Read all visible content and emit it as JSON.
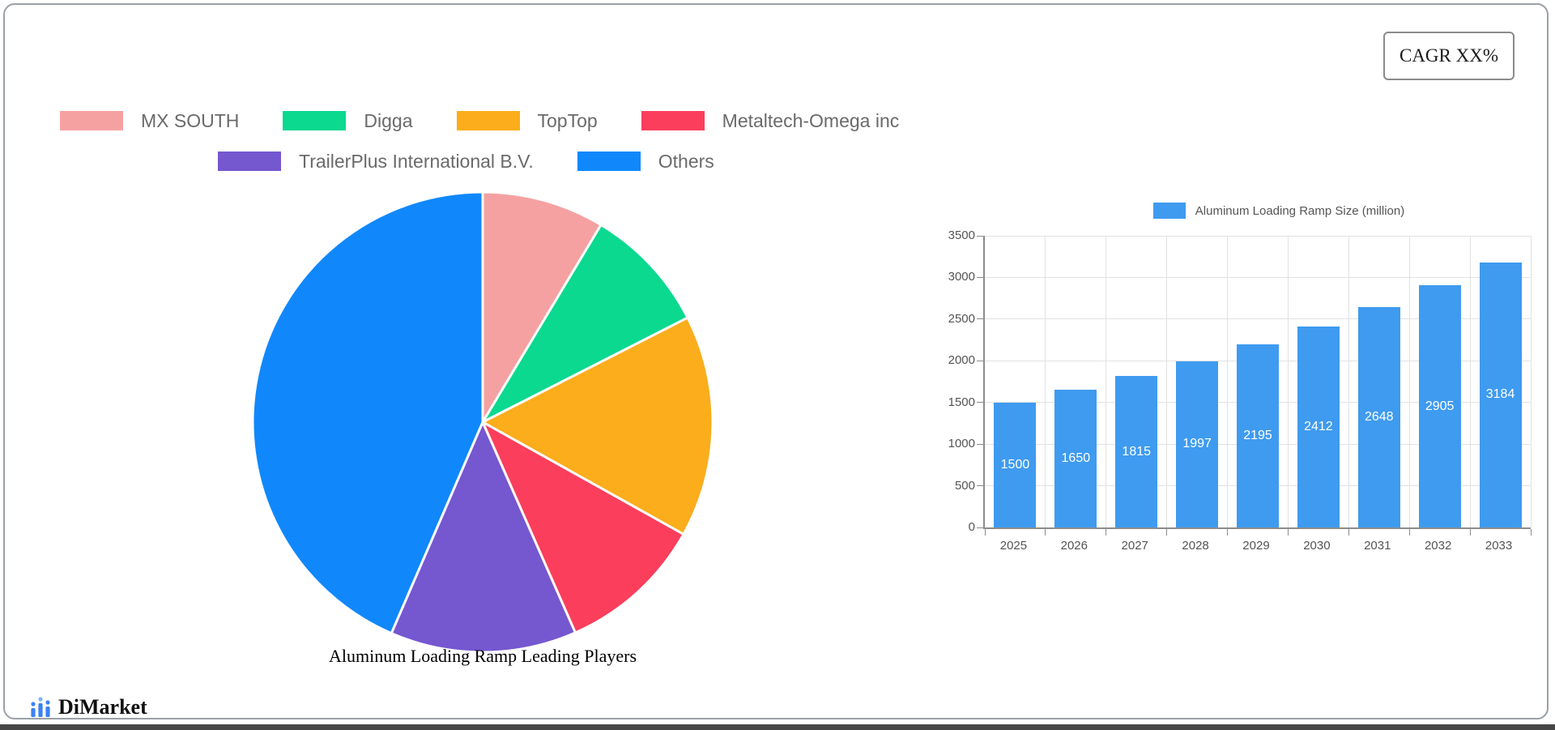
{
  "cagr": {
    "label": "CAGR XX%"
  },
  "brand": {
    "name": "DiMarket"
  },
  "chart_data": [
    {
      "type": "pie",
      "title": "Aluminum Loading Ramp Leading Players",
      "labels": [
        "MX SOUTH",
        "Digga",
        "TopTop",
        "Metaltech-Omega inc",
        "TrailerPlus International B.V.",
        "Others"
      ],
      "values": [
        8.6,
        8.9,
        15.6,
        10.3,
        13.1,
        43.5
      ],
      "colors": [
        "#F5A1A2",
        "#0BD98F",
        "#FBAD1B",
        "#FB3E5C",
        "#7557D0",
        "#1088FB"
      ],
      "start_at": "12-oclock-clockwise",
      "legend_position": "top",
      "slice_border_color": "#ffffff"
    },
    {
      "type": "bar",
      "legend_label": "Aluminum Loading Ramp Size (million)",
      "categories": [
        "2025",
        "2026",
        "2027",
        "2028",
        "2029",
        "2030",
        "2031",
        "2032",
        "2033"
      ],
      "values": [
        1500,
        1650,
        1815,
        1997,
        2195,
        2412,
        2648,
        2905,
        3184
      ],
      "bar_color": "#3F9BEF",
      "value_label_color": "#ffffff",
      "ylim": [
        0,
        3500
      ],
      "ytick_step": 500,
      "grid": true,
      "legend_position": "top"
    }
  ]
}
